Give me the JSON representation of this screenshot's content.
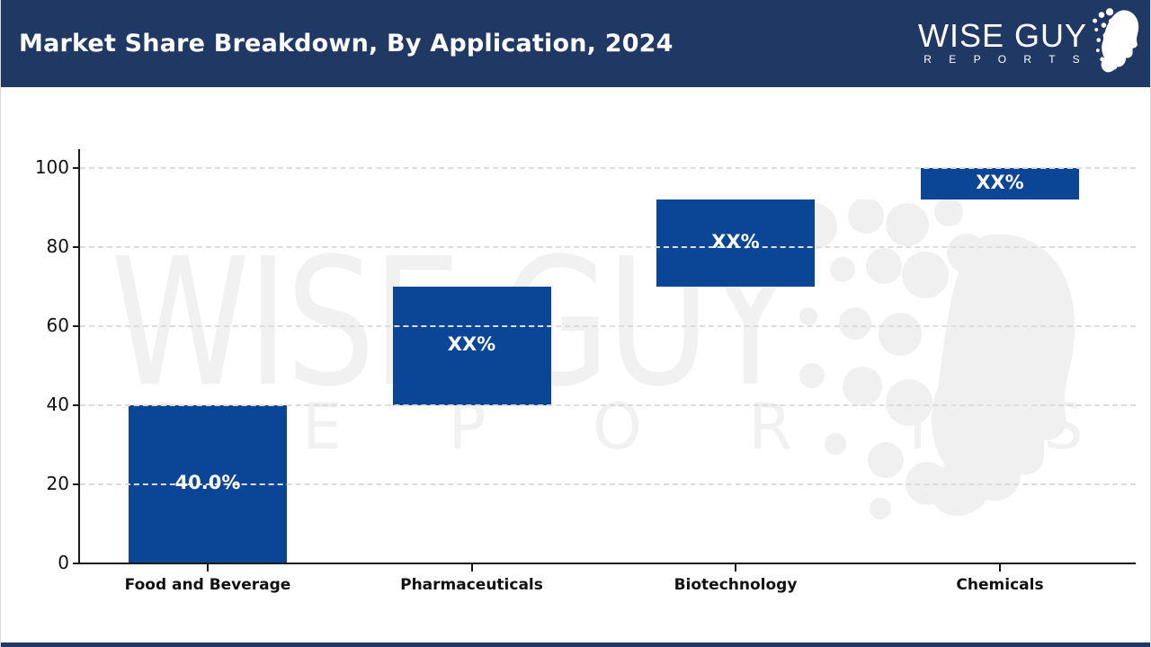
{
  "header": {
    "title": "Market Share Breakdown, By Application, 2024",
    "logo": {
      "name": "WISE GUY",
      "subname": "R E P O R T S"
    }
  },
  "watermark": {
    "line1": "WISE GUY",
    "line2": "R E P O R T S"
  },
  "chart_data": {
    "type": "bar",
    "subtype": "waterfall",
    "title": "Market Share Breakdown, By Application, 2024",
    "categories": [
      "Food and Beverage",
      "Pharmaceuticals",
      "Biotechnology",
      "Chemicals"
    ],
    "segments": [
      {
        "category": "Food and Beverage",
        "start": 0,
        "end": 40,
        "value_pct": 40,
        "label": "40.0%"
      },
      {
        "category": "Pharmaceuticals",
        "start": 40,
        "end": 70,
        "value_pct": 30,
        "label": "XX%"
      },
      {
        "category": "Biotechnology",
        "start": 70,
        "end": 92,
        "value_pct": 22,
        "label": "XX%"
      },
      {
        "category": "Chemicals",
        "start": 92,
        "end": 100,
        "value_pct": 8,
        "label": "XX%"
      }
    ],
    "xlabel": "",
    "ylabel": "",
    "yticks": [
      0,
      20,
      40,
      60,
      80,
      100
    ],
    "ylim": [
      0,
      105
    ],
    "grid": "horizontal-dashed",
    "legend": "none",
    "bar_color": "#0b4595"
  },
  "colors": {
    "header_bg": "#1f3864",
    "footer_bar": "#1f3864",
    "bar": "#0b4595",
    "grid": "#dcdcdc",
    "axis": "#1a1a1a",
    "watermark": "#f1f1f1",
    "title_text": "#ffffff"
  }
}
